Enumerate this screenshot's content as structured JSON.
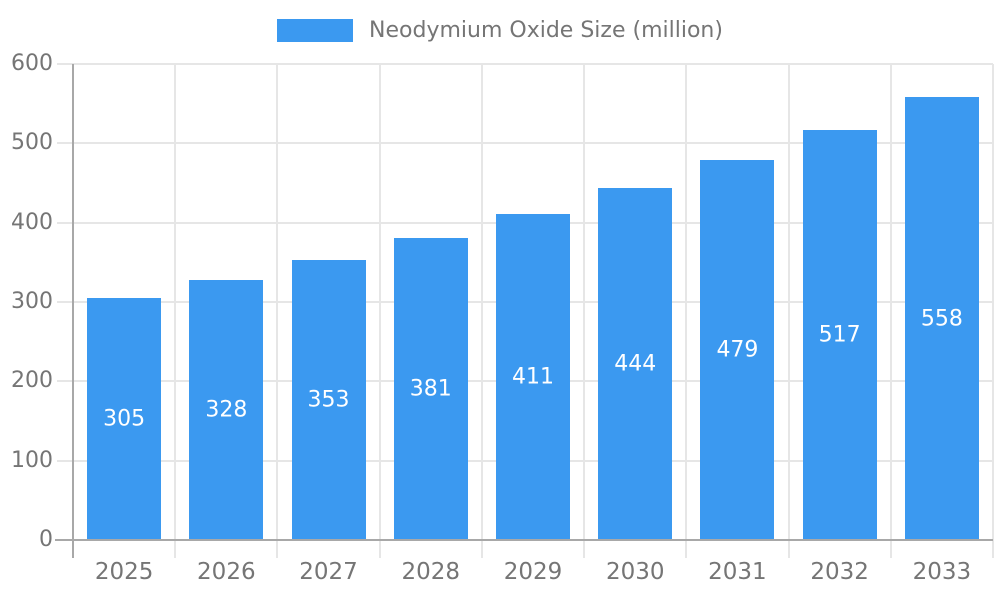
{
  "chart_data": {
    "type": "bar",
    "title": "",
    "legend": {
      "label": "Neodymium Oxide Size (million)",
      "position": "top-center"
    },
    "categories": [
      "2025",
      "2026",
      "2027",
      "2028",
      "2029",
      "2030",
      "2031",
      "2032",
      "2033"
    ],
    "series": [
      {
        "name": "Neodymium Oxide Size (million)",
        "values": [
          305,
          328,
          353,
          381,
          411,
          444,
          479,
          517,
          558
        ]
      }
    ],
    "bar_value_labels": [
      "305",
      "328",
      "353",
      "381",
      "411",
      "444",
      "479",
      "517",
      "558"
    ],
    "xlabel": "",
    "ylabel": "",
    "ylim": [
      0,
      600
    ],
    "yticks": [
      0,
      100,
      200,
      300,
      400,
      500,
      600
    ],
    "grid": true,
    "colors": {
      "bar": "#3B99F0",
      "axis_text": "#757575",
      "grid_line": "#E6E6E6",
      "axis_line": "#A8A8A8",
      "bar_label_text": "#FFFFFF",
      "background": "#FFFFFF"
    }
  }
}
